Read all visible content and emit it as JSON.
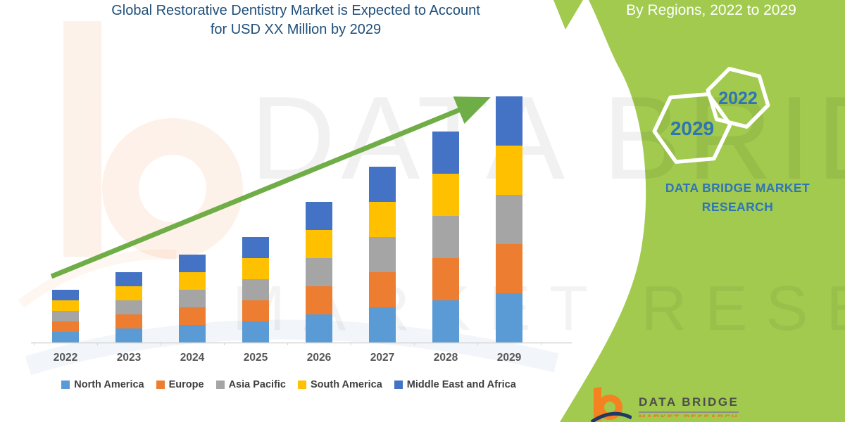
{
  "title": {
    "line1": "Global Restorative Dentistry Market is Expected to Account",
    "line2": "for USD XX Million by 2029"
  },
  "panel": {
    "heading": "By Regions, 2022 to 2029",
    "hexagons": [
      {
        "label": "2029"
      },
      {
        "label": "2022"
      }
    ],
    "brand_line1": "DATA BRIDGE MARKET",
    "brand_line2": "RESEARCH",
    "accent_green": "#A1CA4F",
    "brand_blue": "#2F75B6",
    "logo": {
      "text": "DATA BRIDGE",
      "subtext": "MARKET RESEARCH"
    }
  },
  "watermark": {
    "line1": "DATA BRIDGE",
    "line2": "MARKET RESEARCH"
  },
  "chart_data": {
    "type": "bar",
    "stacked": true,
    "title": "Global Restorative Dentistry Market is Expected to Account for USD XX Million by 2029",
    "xlabel": "",
    "ylabel": "",
    "y_axis_visible": false,
    "units": "relative units (y-axis unlabeled, USD XX Million)",
    "categories": [
      "2022",
      "2023",
      "2024",
      "2025",
      "2026",
      "2027",
      "2028",
      "2029"
    ],
    "series": [
      {
        "name": "North America",
        "color": "#5B9BD5",
        "values": [
          15,
          20,
          25,
          30,
          40,
          50,
          60,
          70
        ]
      },
      {
        "name": "Europe",
        "color": "#ED7D31",
        "values": [
          15,
          20,
          25,
          30,
          40,
          50,
          60,
          70
        ]
      },
      {
        "name": "Asia Pacific",
        "color": "#A5A5A5",
        "values": [
          15,
          20,
          25,
          30,
          40,
          50,
          60,
          70
        ]
      },
      {
        "name": "South America",
        "color": "#FFC000",
        "values": [
          15,
          20,
          25,
          30,
          40,
          50,
          60,
          70
        ]
      },
      {
        "name": "Middle East and Africa",
        "color": "#4472C4",
        "values": [
          15,
          20,
          25,
          30,
          40,
          50,
          60,
          70
        ]
      }
    ],
    "totals": [
      75,
      100,
      125,
      150,
      200,
      250,
      300,
      350
    ],
    "legend_position": "bottom",
    "grid": false,
    "trend_arrow": {
      "color": "#6FAD46",
      "from_year": "2022",
      "to_year": "2029"
    }
  }
}
